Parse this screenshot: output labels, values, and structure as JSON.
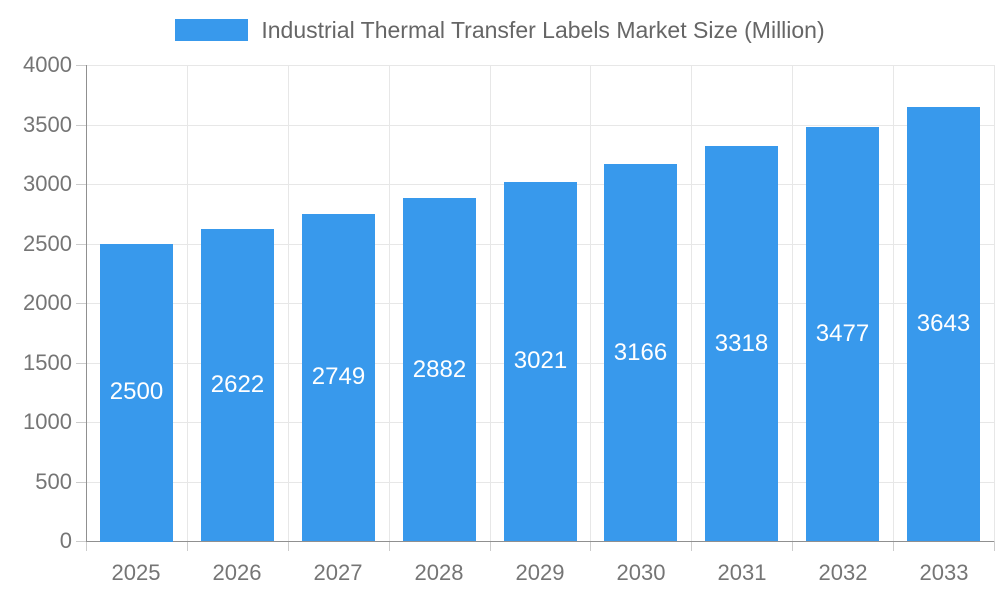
{
  "chart_data": {
    "type": "bar",
    "title": "Industrial Thermal Transfer Labels Market Size (Million)",
    "legend": {
      "position": "top",
      "entries": [
        "Industrial Thermal Transfer Labels Market Size (Million)"
      ]
    },
    "categories": [
      "2025",
      "2026",
      "2027",
      "2028",
      "2029",
      "2030",
      "2031",
      "2032",
      "2033"
    ],
    "series": [
      {
        "name": "Industrial Thermal Transfer Labels Market Size (Million)",
        "values": [
          2500,
          2622,
          2749,
          2882,
          3021,
          3166,
          3318,
          3477,
          3643
        ]
      }
    ],
    "value_labels_shown": true,
    "value_label_position": "inside-center",
    "xlabel": "",
    "ylabel": "",
    "ylim": [
      0,
      4000
    ],
    "ytick_step": 500,
    "ytick_labels": [
      "0",
      "500",
      "1000",
      "1500",
      "2000",
      "2500",
      "3000",
      "3500",
      "4000"
    ],
    "grid": true,
    "colors": {
      "bar": "#3899EC",
      "value_label": "#ffffff",
      "axis_label": "#757575",
      "legend_text": "#666666",
      "grid_line": "#e7e7e7",
      "axis_line": "#909090",
      "tick_mark": "#cccccc",
      "background": "#ffffff"
    }
  }
}
